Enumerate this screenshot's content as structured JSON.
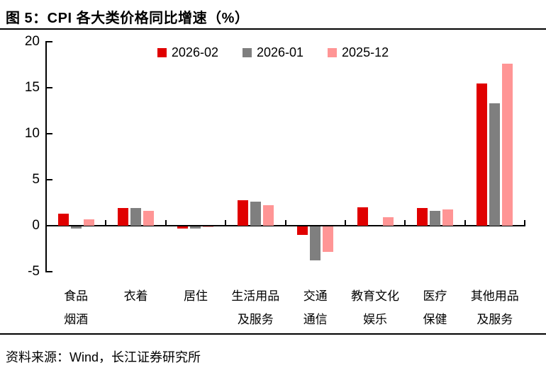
{
  "figure": {
    "title": "图 5：CPI 各大类价格同比增速（%）",
    "source": "资料来源：Wind，长江证券研究所"
  },
  "chart_data": {
    "type": "bar",
    "title": "CPI 各大类价格同比增速（%）",
    "categories": [
      "食品烟酒",
      "衣着",
      "居住",
      "生活用品及服务",
      "交通通信",
      "教育文化娱乐",
      "医疗保健",
      "其他用品及服务"
    ],
    "category_label_lines": [
      [
        "食品",
        "烟酒"
      ],
      [
        "衣着"
      ],
      [
        "居住"
      ],
      [
        "生活用品",
        "及服务"
      ],
      [
        "交通",
        "通信"
      ],
      [
        "教育文化",
        "娱乐"
      ],
      [
        "医疗",
        "保健"
      ],
      [
        "其他用品",
        "及服务"
      ]
    ],
    "series": [
      {
        "name": "2026-02",
        "color": "#e00000",
        "values": [
          1.3,
          1.9,
          -0.2,
          2.8,
          -0.9,
          2.0,
          1.9,
          15.5
        ]
      },
      {
        "name": "2026-01",
        "color": "#7f7f7f",
        "values": [
          -0.2,
          1.9,
          -0.2,
          2.6,
          -3.7,
          0,
          1.6,
          13.3
        ]
      },
      {
        "name": "2025-12",
        "color": "#ff9595",
        "values": [
          0.7,
          1.6,
          -0.1,
          2.2,
          -2.8,
          0.9,
          1.8,
          17.6
        ]
      }
    ],
    "ylabel": "",
    "xlabel": "",
    "ylim": [
      -5,
      20
    ],
    "yticks": [
      20,
      15,
      10,
      5,
      0,
      -5
    ],
    "grid": false,
    "legend_position": "top-center",
    "axis_color": "#000000"
  }
}
